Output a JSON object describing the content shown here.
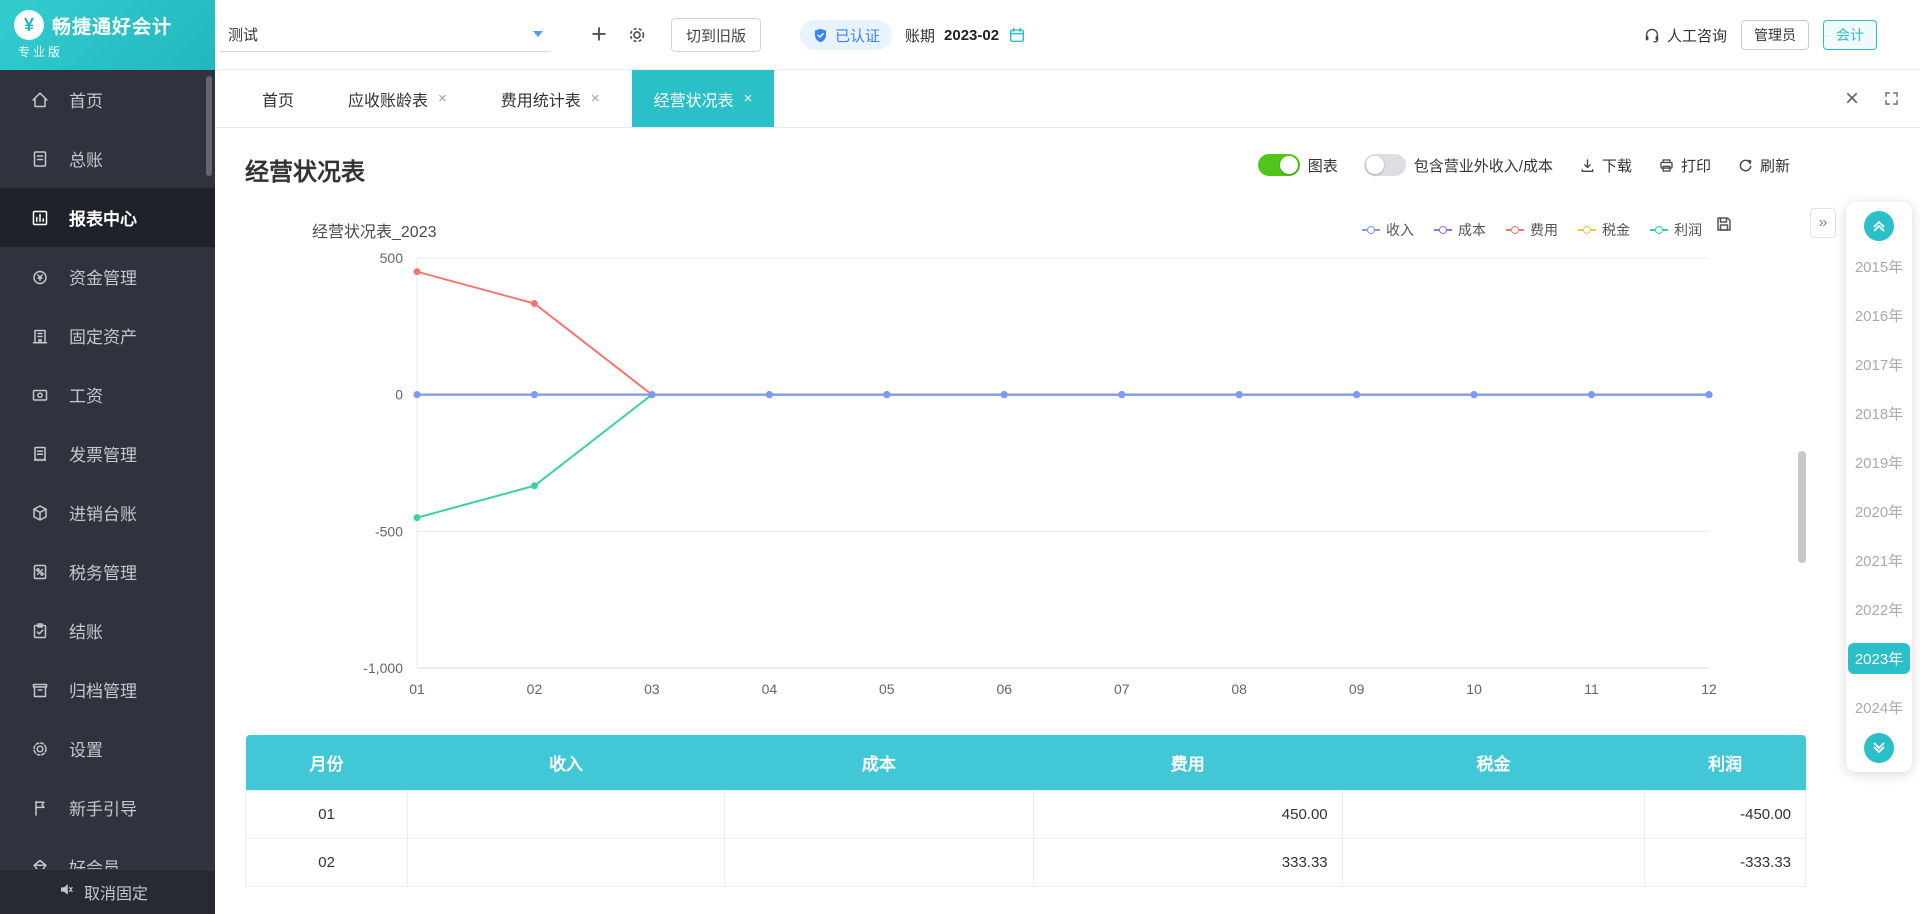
{
  "colors": {
    "accent": "#2bbfc7",
    "toggle_on": "#52c41a",
    "table_header": "#41c7d6",
    "certified": "#3b82f6"
  },
  "brand": {
    "title": "畅捷通好会计",
    "subtitle": "专业版"
  },
  "topbar": {
    "company": "测试",
    "switch_version": "切到旧版",
    "certified": "已认证",
    "period_label": "账期",
    "period_value": "2023-02",
    "consult": "人工咨询",
    "role_admin": "管理员",
    "role_accountant": "会计"
  },
  "sidebar": {
    "items": [
      {
        "label": "首页",
        "icon": "home-icon"
      },
      {
        "label": "总账",
        "icon": "ledger-icon"
      },
      {
        "label": "报表中心",
        "icon": "report-icon",
        "active": true
      },
      {
        "label": "资金管理",
        "icon": "fund-icon"
      },
      {
        "label": "固定资产",
        "icon": "asset-icon"
      },
      {
        "label": "工资",
        "icon": "salary-icon"
      },
      {
        "label": "发票管理",
        "icon": "invoice-icon"
      },
      {
        "label": "进销台账",
        "icon": "stock-icon"
      },
      {
        "label": "税务管理",
        "icon": "tax-icon"
      },
      {
        "label": "结账",
        "icon": "closing-icon"
      },
      {
        "label": "归档管理",
        "icon": "archive-icon"
      },
      {
        "label": "设置",
        "icon": "settings-icon"
      },
      {
        "label": "新手引导",
        "icon": "guide-icon"
      },
      {
        "label": "好会员",
        "icon": "member-icon"
      }
    ],
    "unpin": "取消固定"
  },
  "tabs": {
    "items": [
      {
        "label": "首页",
        "closable": false
      },
      {
        "label": "应收账龄表",
        "closable": true
      },
      {
        "label": "费用统计表",
        "closable": true
      },
      {
        "label": "经营状况表",
        "closable": true,
        "active": true
      }
    ]
  },
  "page": {
    "title": "经营状况表",
    "chart_toggle_label": "图表",
    "chart_toggle_on": true,
    "nonop_toggle_label": "包含营业外收入/成本",
    "nonop_toggle_on": false,
    "download_label": "下载",
    "print_label": "打印",
    "refresh_label": "刷新"
  },
  "chart_data": {
    "type": "line",
    "title": "经营状况表_2023",
    "categories": [
      "01",
      "02",
      "03",
      "04",
      "05",
      "06",
      "07",
      "08",
      "09",
      "10",
      "11",
      "12"
    ],
    "series": [
      {
        "name": "收入",
        "color": "#7b9bf4",
        "values": [
          0,
          0,
          0,
          0,
          0,
          0,
          0,
          0,
          0,
          0,
          0,
          0
        ]
      },
      {
        "name": "成本",
        "color": "#9a6fe3",
        "values": [
          0,
          0,
          0,
          0,
          0,
          0,
          0,
          0,
          0,
          0,
          0,
          0
        ]
      },
      {
        "name": "费用",
        "color": "#f4766f",
        "values": [
          450,
          333.33,
          0,
          0,
          0,
          0,
          0,
          0,
          0,
          0,
          0,
          0
        ]
      },
      {
        "name": "税金",
        "color": "#f6c24b",
        "values": [
          0,
          0,
          0,
          0,
          0,
          0,
          0,
          0,
          0,
          0,
          0,
          0
        ]
      },
      {
        "name": "利润",
        "color": "#3bd2a0",
        "values": [
          -450,
          -333.33,
          0,
          0,
          0,
          0,
          0,
          0,
          0,
          0,
          0,
          0
        ]
      }
    ],
    "yticks": [
      500,
      0,
      -500,
      -1000
    ],
    "ytick_labels": [
      "500",
      "0",
      "-500",
      "-1,000"
    ],
    "ylim": [
      -1000,
      500
    ],
    "grid": true,
    "legend_position": "top-right"
  },
  "year_panel": {
    "years": [
      "2015年",
      "2016年",
      "2017年",
      "2018年",
      "2019年",
      "2020年",
      "2021年",
      "2022年",
      "2023年",
      "2024年"
    ],
    "selected_index": 8
  },
  "table": {
    "headers": [
      "月份",
      "收入",
      "成本",
      "费用",
      "税金",
      "利润"
    ],
    "rows": [
      [
        "01",
        "",
        "",
        "450.00",
        "",
        "-450.00"
      ],
      [
        "02",
        "",
        "",
        "333.33",
        "",
        "-333.33"
      ]
    ]
  }
}
